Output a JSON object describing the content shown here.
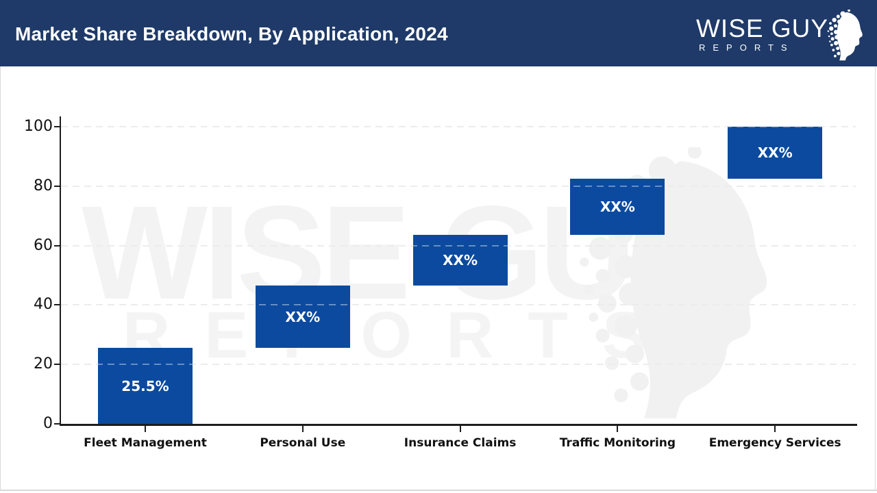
{
  "header": {
    "title": "Market Share Breakdown, By Application, 2024",
    "bg_color": "#1f3a68",
    "logo": {
      "line1": "WISE GUY",
      "line2": "REPORTS"
    }
  },
  "watermark": {
    "line1": "WISE GUY",
    "line2": "REPORTS"
  },
  "chart_data": {
    "type": "bar",
    "variant": "waterfall",
    "title": "Market Share Breakdown, By Application, 2024",
    "categories": [
      "Fleet Management",
      "Personal Use",
      "Insurance Claims",
      "Traffic Monitoring",
      "Emergency Services"
    ],
    "segments": [
      {
        "category": "Fleet Management",
        "start": 0,
        "end": 25.5,
        "label": "25.5%"
      },
      {
        "category": "Personal Use",
        "start": 25.5,
        "end": 46.5,
        "label": "XX%"
      },
      {
        "category": "Insurance Claims",
        "start": 46.5,
        "end": 63.5,
        "label": "XX%"
      },
      {
        "category": "Traffic Monitoring",
        "start": 63.5,
        "end": 82.5,
        "label": "XX%"
      },
      {
        "category": "Emergency Services",
        "start": 82.5,
        "end": 100,
        "label": "XX%"
      }
    ],
    "yticks": [
      0,
      20,
      40,
      60,
      80,
      100
    ],
    "ylim": [
      0,
      104
    ],
    "xlabel": "",
    "ylabel": "",
    "grid": "horizontal-dashed",
    "legend": "none",
    "bar_color": "#0b4a9f",
    "bar_label_color": "#ffffff"
  }
}
